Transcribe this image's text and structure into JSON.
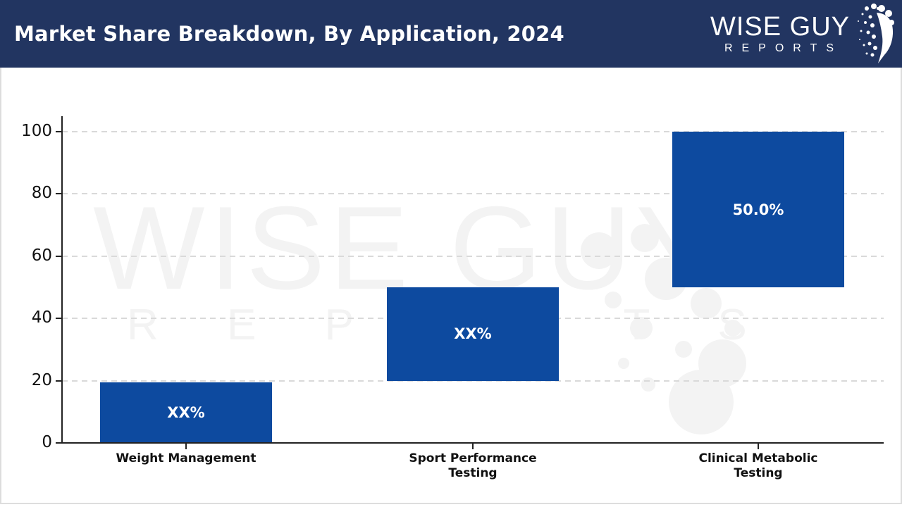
{
  "header": {
    "title": "Market Share Breakdown, By Application, 2024",
    "logo": {
      "wordmark": "WISE GUY",
      "subtext": "REPORTS"
    }
  },
  "watermark": {
    "wordmark": "WISE GUY",
    "subtext": "R E P O R T S"
  },
  "chart_data": {
    "type": "bar",
    "subtype": "floating-waterfall-segments",
    "title": "Market Share Breakdown, By Application, 2024",
    "categories": [
      "Weight Management",
      "Sport Performance\nTesting",
      "Clinical Metabolic\nTesting"
    ],
    "bars": [
      {
        "category": "Weight Management",
        "start": 0,
        "end": 19.5,
        "label": "XX%"
      },
      {
        "category": "Sport Performance\nTesting",
        "start": 20,
        "end": 50,
        "label": "XX%"
      },
      {
        "category": "Clinical Metabolic\nTesting",
        "start": 50,
        "end": 100,
        "label": "50.0%"
      }
    ],
    "yticks": [
      0,
      20,
      40,
      60,
      80,
      100
    ],
    "ylim": [
      0,
      105
    ],
    "xlabel": "",
    "ylabel": "",
    "grid": "horizontal-dashed",
    "legend": "none",
    "bar_color": "#0d4a9f",
    "bar_label_color": "#ffffff"
  },
  "colors": {
    "header_bg": "#223561",
    "bar": "#0d4a9f",
    "axis": "#222222",
    "gridline": "#d9d9d9",
    "watermark": "#f3f3f3",
    "frame_border": "#dddddd"
  }
}
